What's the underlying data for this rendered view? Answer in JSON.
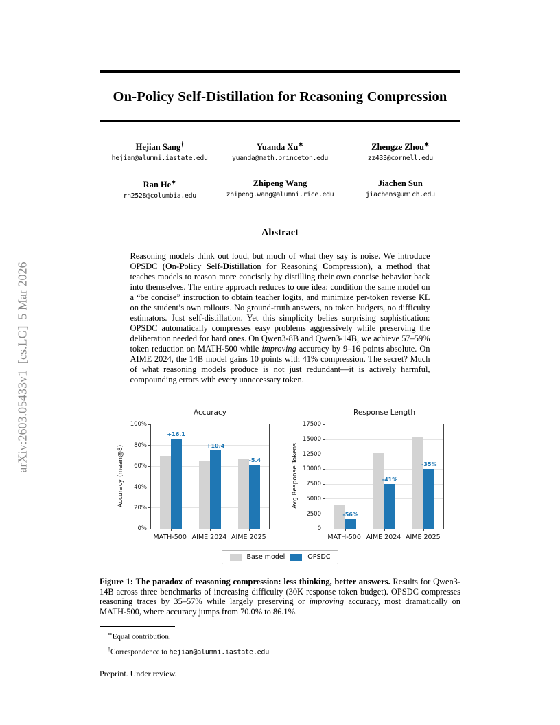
{
  "sidebar": {
    "stamp": "arXiv:2603.05433v1  [cs.LG]  5 Mar 2026"
  },
  "title": "On-Policy Self-Distillation for Reasoning Compression",
  "authors": [
    {
      "name": "Hejian Sang",
      "marker": "†",
      "email": "hejian@alumni.iastate.edu"
    },
    {
      "name": "Yuanda Xu",
      "marker": "∗",
      "email": "yuanda@math.princeton.edu"
    },
    {
      "name": "Zhengze Zhou",
      "marker": "∗",
      "email": "zz433@cornell.edu"
    },
    {
      "name": "Ran He",
      "marker": "∗",
      "email": "rh2528@columbia.edu"
    },
    {
      "name": "Zhipeng Wang",
      "marker": "",
      "email": "zhipeng.wang@alumni.rice.edu"
    },
    {
      "name": "Jiachen Sun",
      "marker": "",
      "email": "jiachens@umich.edu"
    }
  ],
  "abstract": {
    "heading": "Abstract",
    "segments": [
      {
        "text": "Reasoning models think out loud, but much of what they say is noise. We introduce OPSDC (",
        "style": "normal"
      },
      {
        "text": "O",
        "style": "bold"
      },
      {
        "text": "n-",
        "style": "normal"
      },
      {
        "text": "P",
        "style": "bold"
      },
      {
        "text": "olicy ",
        "style": "normal"
      },
      {
        "text": "S",
        "style": "bold"
      },
      {
        "text": "elf-",
        "style": "normal"
      },
      {
        "text": "D",
        "style": "bold"
      },
      {
        "text": "istillation for Reasoning ",
        "style": "normal"
      },
      {
        "text": "C",
        "style": "bold"
      },
      {
        "text": "ompression), a method that teaches models to reason more concisely by distilling their own concise behavior back into themselves. The entire approach reduces to one idea: condition the same model on a “be concise” instruction to obtain teacher logits, and minimize per-token reverse KL on the student’s own rollouts. No ground-truth answers, no token budgets, no difficulty estimators. Just self-distillation. Yet this simplicity belies surprising sophistication: OPSDC automatically compresses easy problems aggressively while preserving the deliberation needed for hard ones. On Qwen3-8B and Qwen3-14B, we achieve 57–59% token reduction on MATH-500 while ",
        "style": "normal"
      },
      {
        "text": "improving",
        "style": "italic"
      },
      {
        "text": " accuracy by 9–16 points absolute. On AIME 2024, the 14B model gains 10 points with 41% compression. The secret? Much of what reasoning models produce is not just redundant—it is actively harmful, compounding errors with every unnecessary token.",
        "style": "normal"
      }
    ]
  },
  "chart_data": [
    {
      "type": "bar",
      "title": "Accuracy",
      "ylabel": "Accuracy (mean@8)",
      "categories": [
        "MATH-500",
        "AIME 2024",
        "AIME 2025"
      ],
      "series": [
        {
          "name": "Base model",
          "values": [
            70.0,
            65.0,
            66.5
          ],
          "color": "#d3d3d3"
        },
        {
          "name": "OPSDC",
          "values": [
            86.1,
            75.4,
            61.1
          ],
          "color": "#1f77b4"
        }
      ],
      "annotations": [
        "+16.1",
        "+10.4",
        "-5.4"
      ],
      "annotation_color": "#1f77b4",
      "ylim": [
        0,
        100
      ],
      "yticks": [
        0,
        20,
        40,
        60,
        80,
        100
      ],
      "ytick_format": "percent",
      "grid": true,
      "legend_position": "below"
    },
    {
      "type": "bar",
      "title": "Response Length",
      "ylabel": "Avg Response Tokens",
      "categories": [
        "MATH-500",
        "AIME 2024",
        "AIME 2025"
      ],
      "series": [
        {
          "name": "Base model",
          "values": [
            3900,
            12700,
            15500
          ],
          "color": "#d3d3d3"
        },
        {
          "name": "OPSDC",
          "values": [
            1700,
            7500,
            10100
          ],
          "color": "#1f77b4"
        }
      ],
      "annotations": [
        "-56%",
        "-41%",
        "-35%"
      ],
      "annotation_color": "#1f77b4",
      "ylim": [
        0,
        17500
      ],
      "yticks": [
        0,
        2500,
        5000,
        7500,
        10000,
        12500,
        15000,
        17500
      ],
      "ytick_format": "plain",
      "grid": true,
      "legend_position": "below"
    }
  ],
  "caption": {
    "segments": [
      {
        "text": "Figure 1: The paradox of reasoning compression: less thinking, better answers.",
        "style": "bold"
      },
      {
        "text": " Results for Qwen3-14B across three benchmarks of increasing difficulty (30K response token budget). OPSDC compresses reasoning traces by 35–57% while largely preserving or ",
        "style": "normal"
      },
      {
        "text": "improving",
        "style": "italic"
      },
      {
        "text": " accuracy, most dramatically on MATH-500, where accuracy jumps from 70.0% to 86.1%.",
        "style": "normal"
      }
    ]
  },
  "footnotes": [
    {
      "marker": "∗",
      "segments": [
        {
          "text": "Equal contribution.",
          "style": "normal"
        }
      ]
    },
    {
      "marker": "†",
      "segments": [
        {
          "text": "Correspondence to ",
          "style": "normal"
        },
        {
          "text": "hejian@alumni.iastate.edu",
          "style": "mono"
        }
      ]
    }
  ],
  "footer": "Preprint. Under review."
}
